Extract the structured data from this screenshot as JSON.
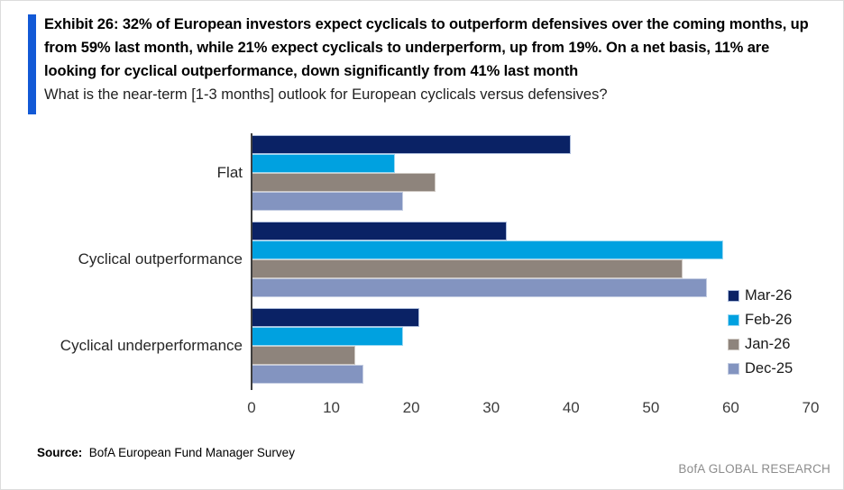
{
  "header": {
    "accent_color": "#1259D6",
    "title": "Exhibit 26: 32% of European investors expect cyclicals to outperform defensives over the coming months, up from 59% last month, while 21% expect cyclicals to underperform, up from 19%. On a net basis, 11% are looking for cyclical outperformance, down significantly from 41% last month",
    "subtitle": "What is the near-term [1-3 months] outlook for European cyclicals versus defensives?"
  },
  "chart_data": {
    "type": "bar",
    "orientation": "horizontal",
    "title": "What is the near-term [1-3 months] outlook for European cyclicals versus defensives?",
    "categories": [
      "Flat",
      "Cyclical outperformance",
      "Cyclical underperformance"
    ],
    "series": [
      {
        "name": "Mar-26",
        "color": "#0A2265",
        "border_color": "#AEBEDC",
        "values": [
          40,
          32,
          21
        ]
      },
      {
        "name": "Feb-26",
        "color": "#00A1E0",
        "border_color": "#9BD9F3",
        "values": [
          18,
          59,
          19
        ]
      },
      {
        "name": "Jan-26",
        "color": "#8E847C",
        "border_color": "#CFC9C3",
        "values": [
          23,
          54,
          13
        ]
      },
      {
        "name": "Dec-25",
        "color": "#8394C0",
        "border_color": "#C4CDE2",
        "values": [
          19,
          57,
          14
        ]
      }
    ],
    "xlim": [
      0,
      70
    ],
    "xticks": [
      0,
      10,
      20,
      30,
      40,
      50,
      60,
      70
    ],
    "xlabel": "",
    "ylabel": "",
    "grid": false,
    "legend_position": "right"
  },
  "footer": {
    "source_label": "Source:",
    "source_text": "BofA European Fund Manager Survey",
    "brand": "BofA GLOBAL RESEARCH"
  }
}
